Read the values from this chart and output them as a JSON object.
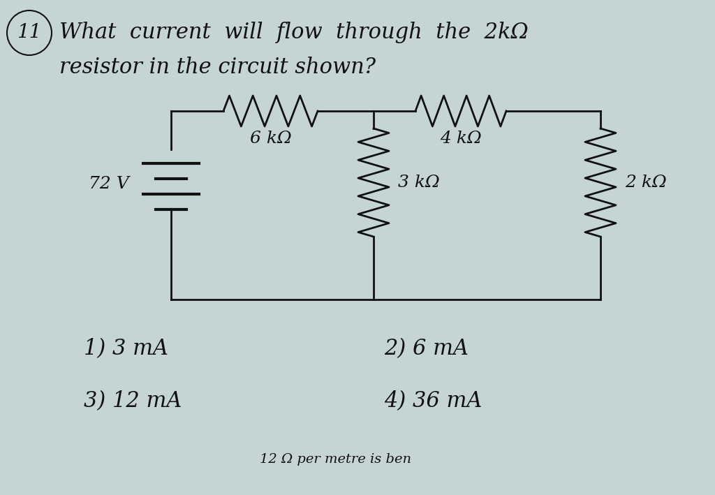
{
  "bg_color": "#c5d5d5",
  "question_number": "11",
  "voltage": "72 V",
  "resistor_labels": [
    "6 kΩ",
    "4 kΩ",
    "3 kΩ",
    "2 kΩ"
  ],
  "choices": [
    "1) 3 mA",
    "2) 6 mA",
    "3) 12 mA",
    "4) 36 mA"
  ],
  "line_color": "#111111",
  "text_color": "#111111",
  "q_fontsize": 22,
  "label_fontsize": 18,
  "choice_fontsize": 22,
  "bottom_text": "12 Ω per metre is ben"
}
